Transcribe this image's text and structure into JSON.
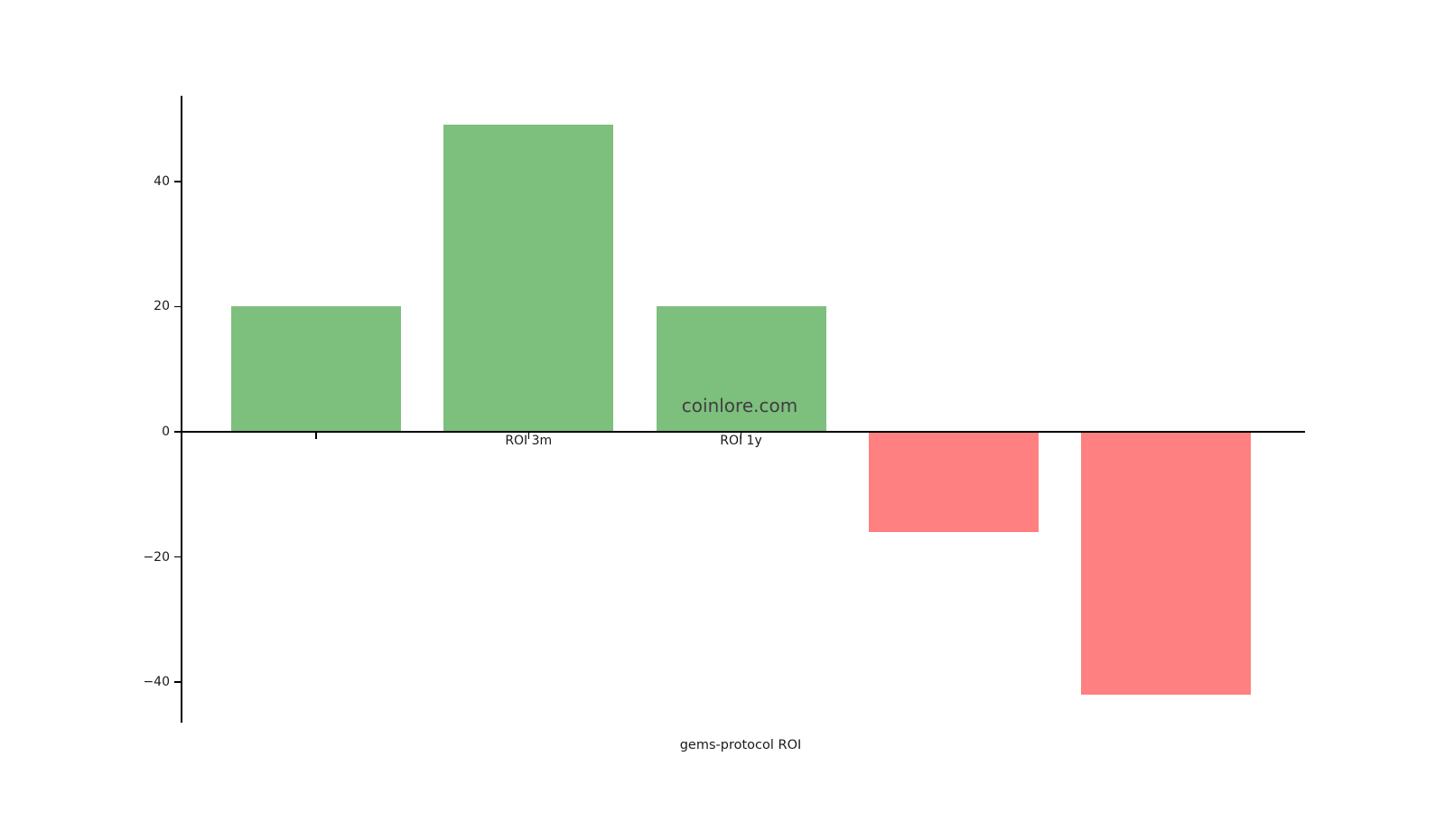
{
  "chart_data": {
    "type": "bar",
    "title": "gems-protocol ROI",
    "watermark": "coinlore.com",
    "categories": [
      "",
      "ROI 3m",
      "ROI 1y",
      "",
      ""
    ],
    "values": [
      20,
      49,
      20,
      -16,
      -42
    ],
    "positive_color": "#7dbf7d",
    "negative_color": "#ff8080",
    "xlabel": "gems-protocol ROI",
    "ylabel": "",
    "ytick_values": [
      40,
      20,
      0,
      -20,
      -40
    ],
    "ytick_labels": [
      "40",
      "20",
      "0",
      "−20",
      "−40"
    ],
    "ylim": [
      -46.8,
      53.7
    ],
    "grid": false,
    "legend": "none"
  },
  "styles": {
    "background": "#ffffff",
    "axis_color": "#000000",
    "text_color": "#1a1a1a",
    "watermark_color": "#3f3f3f"
  }
}
